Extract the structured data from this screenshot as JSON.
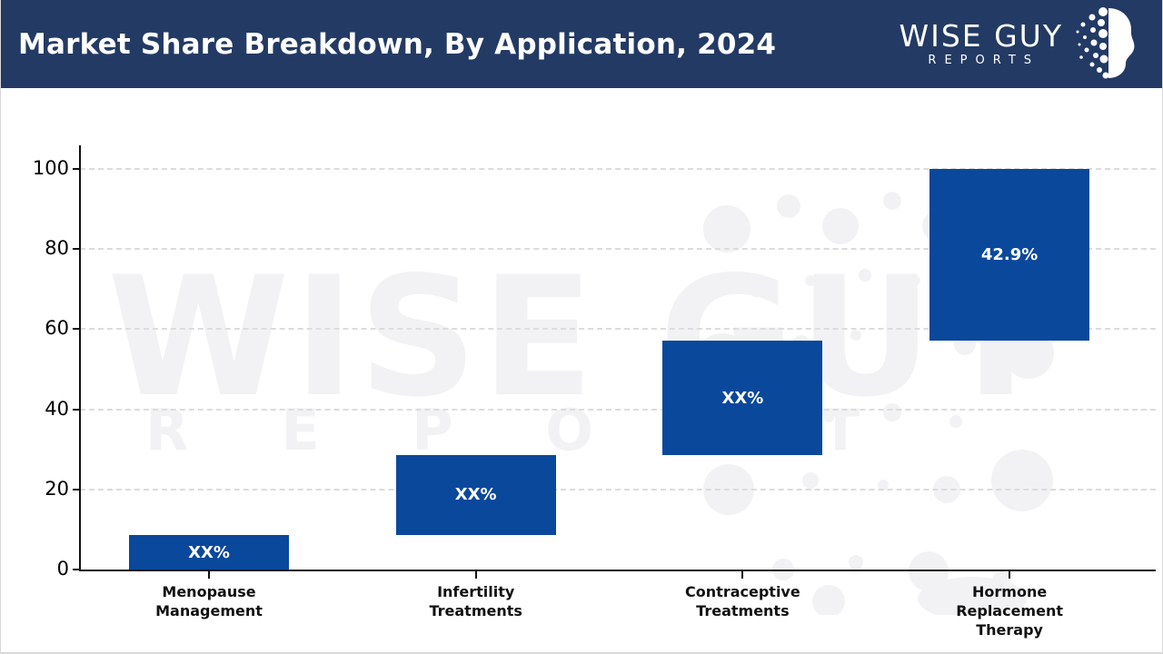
{
  "header": {
    "title": "Market Share Breakdown, By Application, 2024",
    "logo": {
      "name": "WISE GUY",
      "sub": "REPORTS"
    }
  },
  "watermark": {
    "line1": "WISE GUY",
    "line2": "R E P O R T"
  },
  "colors": {
    "header_bg": "#233A64",
    "bar": "#0A489C",
    "bar_label": "#FFFFFF",
    "gridline": "#DCDCDC",
    "axis": "#111111",
    "watermark": "#F2F2F4"
  },
  "chart_data": {
    "type": "bar",
    "variant": "waterfall",
    "title": "Market Share Breakdown, By Application, 2024",
    "xlabel": "",
    "ylabel": "",
    "ylim": [
      0,
      100
    ],
    "yticks": [
      0,
      20,
      40,
      60,
      80,
      100
    ],
    "grid": {
      "horizontal": true,
      "style": "dashed"
    },
    "legend": "none",
    "categories": [
      "Menopause Management",
      "Infertility Treatments",
      "Contraceptive Treatments",
      "Hormone Replacement Therapy"
    ],
    "category_lines": [
      [
        "Menopause",
        "Management"
      ],
      [
        "Infertility",
        "Treatments"
      ],
      [
        "Contraceptive",
        "Treatments"
      ],
      [
        "Hormone",
        "Replacement",
        "Therapy"
      ]
    ],
    "segments": [
      {
        "category": "Menopause Management",
        "label": "XX%",
        "start": 0,
        "end": 8.6
      },
      {
        "category": "Infertility Treatments",
        "label": "XX%",
        "start": 8.6,
        "end": 28.6
      },
      {
        "category": "Contraceptive Treatments",
        "label": "XX%",
        "start": 28.6,
        "end": 57.1
      },
      {
        "category": "Hormone Replacement Therapy",
        "label": "42.9%",
        "start": 57.1,
        "end": 100
      }
    ]
  }
}
